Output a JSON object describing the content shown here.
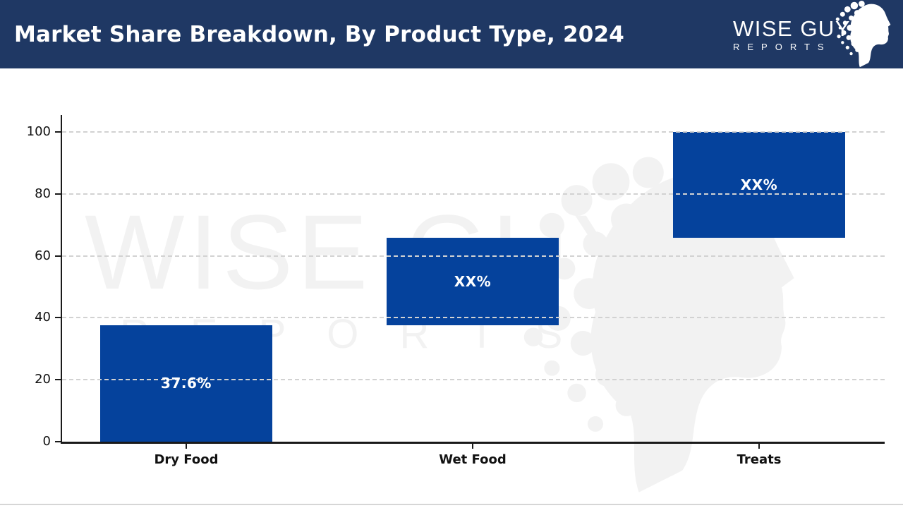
{
  "header": {
    "title": "Market Share Breakdown, By Product Type, 2024",
    "logo": {
      "line1": "WISE GUY",
      "line2": "REPORTS"
    }
  },
  "watermark": {
    "line1": "WISE GUY",
    "line2": "REPORTS"
  },
  "chart_data": {
    "type": "bar",
    "variant": "waterfall",
    "title": "Market Share Breakdown, By Product Type, 2024",
    "categories": [
      "Dry Food",
      "Wet Food",
      "Treats"
    ],
    "segments": [
      {
        "category": "Dry Food",
        "label": "37.6%",
        "start": 0,
        "end": 37.6
      },
      {
        "category": "Wet Food",
        "label": "XX%",
        "start": 37.6,
        "end": 65.8
      },
      {
        "category": "Treats",
        "label": "XX%",
        "start": 65.8,
        "end": 100
      }
    ],
    "xlabel": "",
    "ylabel": "",
    "ylim": [
      0,
      100
    ],
    "yticks": [
      0,
      20,
      40,
      60,
      80,
      100
    ],
    "grid": {
      "axis": "y",
      "style": "dashed",
      "color": "#d2d2d2"
    },
    "legend": null,
    "bar_color": "#05429c",
    "bar_label_color": "#ffffff",
    "axis_color": "#1a1a1a"
  },
  "colors": {
    "header_bg": "#1f3864",
    "bar": "#05429c",
    "watermark": "#f2f2f2",
    "bottom_rule": "#d6d6d6"
  }
}
